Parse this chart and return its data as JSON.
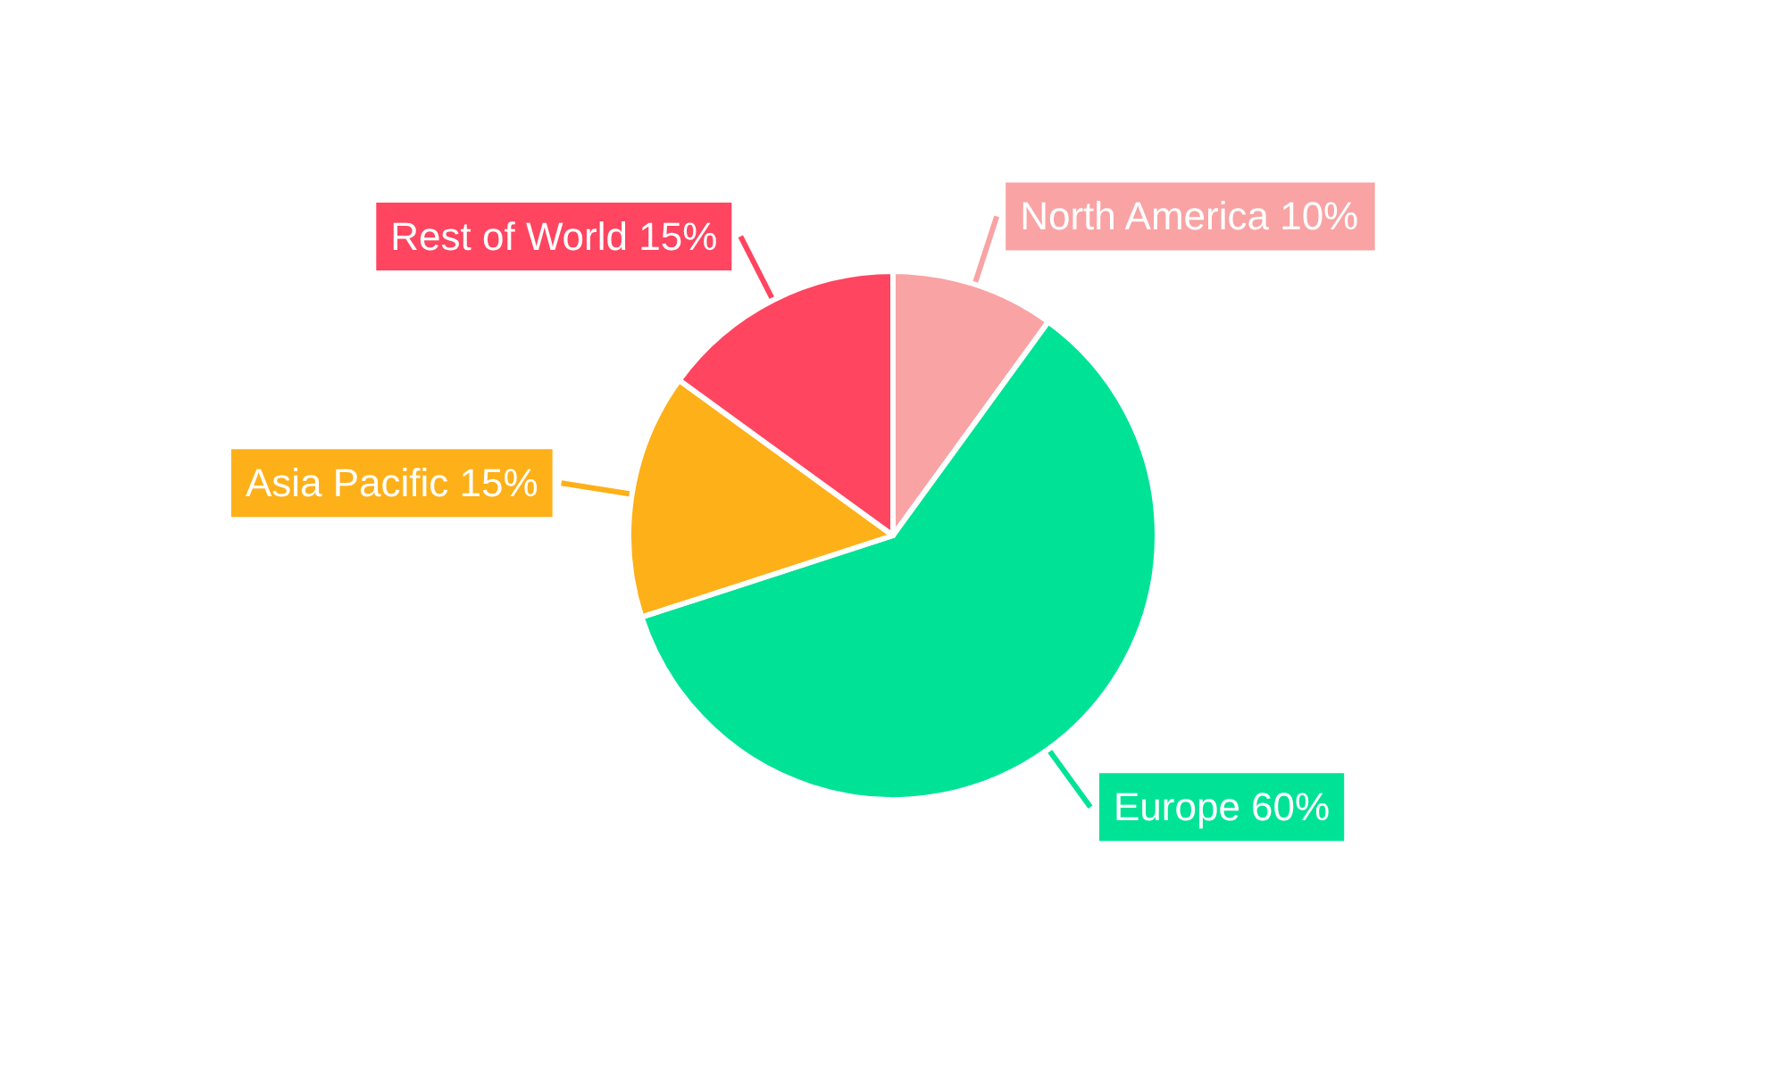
{
  "chart_data": {
    "type": "pie",
    "categories": [
      "North America",
      "Europe",
      "Asia Pacific",
      "Rest of World"
    ],
    "values": [
      10,
      60,
      15,
      15
    ],
    "colors": [
      "#f9a3a4",
      "#00e396",
      "#feb019",
      "#ff4560"
    ],
    "value_labels": [
      "10%",
      "60%",
      "15%",
      "15%"
    ],
    "legend": false
  }
}
